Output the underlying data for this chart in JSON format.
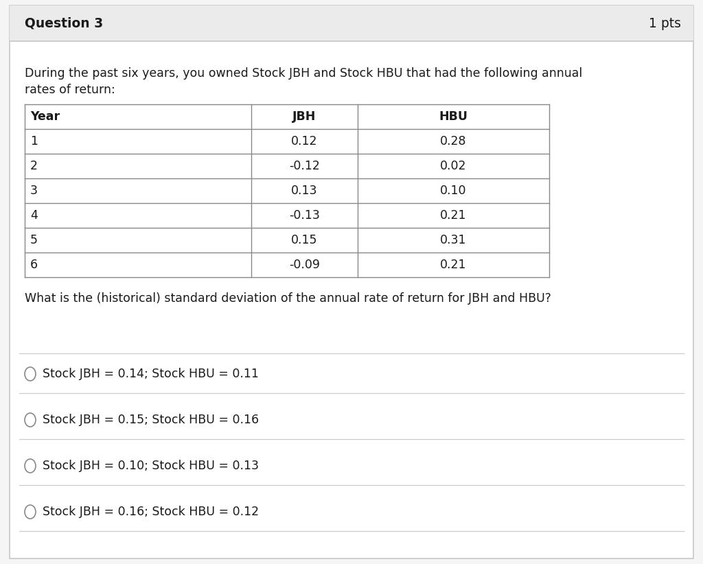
{
  "title": "Question 3",
  "pts": "1 pts",
  "header_bg": "#ebebeb",
  "bg_color": "#f5f5f5",
  "content_bg": "#ffffff",
  "body_text_line1": "During the past six years, you owned Stock JBH and Stock HBU that had the following annual",
  "body_text_line2": "rates of return:",
  "table_headers": [
    "Year",
    "JBH",
    "HBU"
  ],
  "table_data": [
    [
      "1",
      "0.12",
      "0.28"
    ],
    [
      "2",
      "-0.12",
      "0.02"
    ],
    [
      "3",
      "0.13",
      "0.10"
    ],
    [
      "4",
      "-0.13",
      "0.21"
    ],
    [
      "5",
      "0.15",
      "0.31"
    ],
    [
      "6",
      "-0.09",
      "0.21"
    ]
  ],
  "question_text": "What is the (historical) standard deviation of the annual rate of return for JBH and HBU?",
  "choices": [
    "Stock JBH = 0.14; Stock HBU = 0.11",
    "Stock JBH = 0.15; Stock HBU = 0.16",
    "Stock JBH = 0.10; Stock HBU = 0.13",
    "Stock JBH = 0.16; Stock HBU = 0.12"
  ],
  "outer_border_color": "#c8c8c8",
  "table_border_color": "#888888",
  "separator_color": "#cccccc",
  "text_color": "#1a1a1a",
  "title_fontsize": 13.5,
  "body_fontsize": 12.5,
  "table_fontsize": 12.5,
  "choice_fontsize": 12.5
}
